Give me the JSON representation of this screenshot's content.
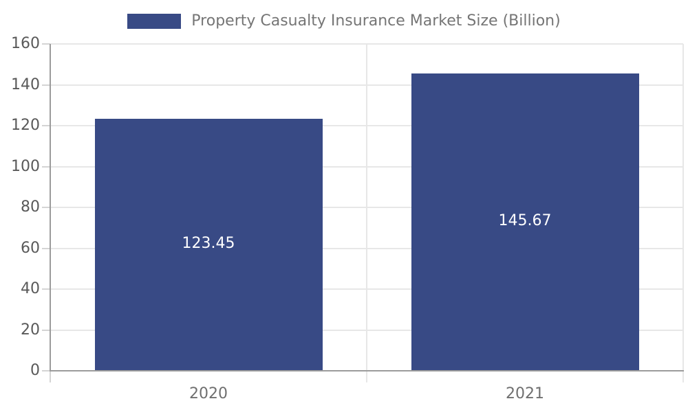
{
  "chart_data": {
    "type": "bar",
    "title": "Property Casualty Insurance Market Size (Billion)",
    "categories": [
      "2020",
      "2021"
    ],
    "values": [
      123.45,
      145.67
    ],
    "value_labels": [
      "123.45",
      "145.67"
    ],
    "xlabel": "",
    "ylabel": "",
    "ylim": [
      0,
      160
    ],
    "yticks": [
      0,
      20,
      40,
      60,
      80,
      100,
      120,
      140,
      160
    ],
    "ytick_labels": [
      "0",
      "20",
      "40",
      "60",
      "80",
      "100",
      "120",
      "140",
      "160"
    ],
    "grid": true,
    "legend_position": "top-center",
    "colors": {
      "bar": "#384a85",
      "grid": "#e7e7e7",
      "axis": "#9b9b9b",
      "tick": "#d4d4d4",
      "y_tick_label": "#595959",
      "x_tick_label": "#6f6f6f",
      "legend_text": "#757575",
      "value_label": "#ffffff",
      "background": "#ffffff"
    }
  }
}
